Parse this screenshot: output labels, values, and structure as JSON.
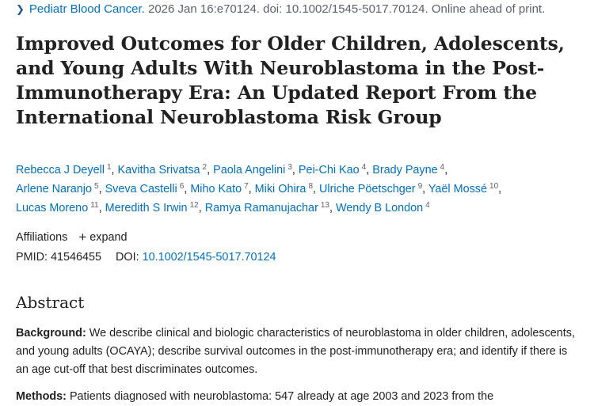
{
  "citation": {
    "journal": "Pediatr Blood Cancer.",
    "details": " 2026 Jan 16:e70124. doi: 10.1002/1545-5017.70124. Online ahead of print."
  },
  "title_lines": [
    "Improved Outcomes for Older Children, Adolescents,",
    "and Young Adults With Neuroblastoma in the Post-",
    "Immunotherapy Era: An Updated Report From the",
    "International Neuroblastoma Risk Group"
  ],
  "authors": [
    {
      "name": "Rebecca J Deyell",
      "sup": "1"
    },
    {
      "name": "Kavitha Srivatsa",
      "sup": "2"
    },
    {
      "name": "Paola Angelini",
      "sup": "3"
    },
    {
      "name": "Pei-Chi Kao",
      "sup": "4"
    },
    {
      "name": "Brady Payne",
      "sup": "4"
    },
    {
      "name": "Arlene Naranjo",
      "sup": "5"
    },
    {
      "name": "Sveva Castelli",
      "sup": "6"
    },
    {
      "name": "Miho Kato",
      "sup": "7"
    },
    {
      "name": "Miki Ohira",
      "sup": "8"
    },
    {
      "name": "Ulriche Pöetschger",
      "sup": "9"
    },
    {
      "name": "Yaël Mossé",
      "sup": "10"
    },
    {
      "name": "Lucas Moreno",
      "sup": "11"
    },
    {
      "name": "Meredith S Irwin",
      "sup": "12"
    },
    {
      "name": "Ramya Ramanujachar",
      "sup": "13"
    },
    {
      "name": "Wendy B London",
      "sup": "4"
    }
  ],
  "affiliations": {
    "label": "Affiliations",
    "expand_label": "expand"
  },
  "ids": {
    "pmid_label": "PMID:",
    "pmid_value": "41546455",
    "doi_label": "DOI:",
    "doi_value": "10.1002/1545-5017.70124"
  },
  "abstract": {
    "heading": "Abstract",
    "background_label": "Background:",
    "background_text": " We describe clinical and biologic characteristics of neuroblastoma in older children, adolescents, and young adults (OCAYA); describe survival outcomes in the post-immunotherapy era; and identify if there is an age cut-off that best discriminates outcomes.",
    "methods_label": "Methods:",
    "methods_text": " Patients diagnosed with neuroblastoma: 547 already at age 2003 and 2023 from the"
  },
  "colors": {
    "link": "#0071bc",
    "text": "#212121",
    "muted": "#5b616b"
  }
}
